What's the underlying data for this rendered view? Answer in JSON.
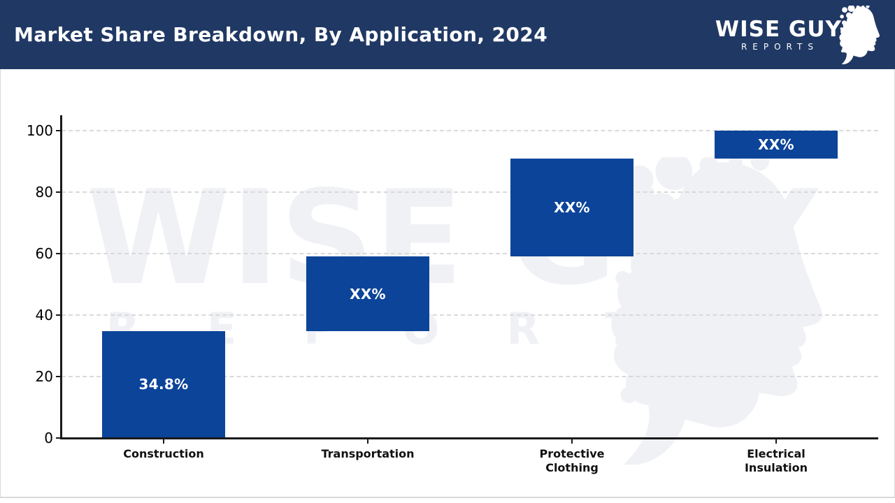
{
  "header": {
    "title": "Market Share Breakdown, By Application, 2024",
    "logo": {
      "line1": "WISE GUY",
      "line2": "REPORTS"
    }
  },
  "watermark": {
    "line1": "WISE GUY",
    "line2": "REPORTS"
  },
  "colors": {
    "header_bg": "#203864",
    "bar_blue": "#0c4499",
    "bar_label": "#ffffff",
    "gridline": "#d9d9d9",
    "axis": "#1a1a1a",
    "watermark": "#eff1f4"
  },
  "chart_data": {
    "type": "bar",
    "variant": "floating-waterfall",
    "title": "Market Share Breakdown, By Application, 2024",
    "categories": [
      "Construction",
      "Transportation",
      "Protective Clothing",
      "Electrical Insulation"
    ],
    "bars": [
      {
        "category": "Construction",
        "start": 0,
        "end": 34.8,
        "label": "34.8%"
      },
      {
        "category": "Transportation",
        "start": 34.8,
        "end": 59,
        "label": "XX%"
      },
      {
        "category": "Protective Clothing",
        "start": 59,
        "end": 91,
        "label": "XX%"
      },
      {
        "category": "Electrical Insulation",
        "start": 91,
        "end": 100,
        "label": "XX%"
      }
    ],
    "yticks": [
      0,
      20,
      40,
      60,
      80,
      100
    ],
    "ytick_labels": [
      "0",
      "20",
      "40",
      "60",
      "80",
      "100"
    ],
    "ylim": [
      0,
      105
    ],
    "xlabel": "",
    "ylabel": "",
    "grid": "horizontal-dashed",
    "legend": "none"
  }
}
